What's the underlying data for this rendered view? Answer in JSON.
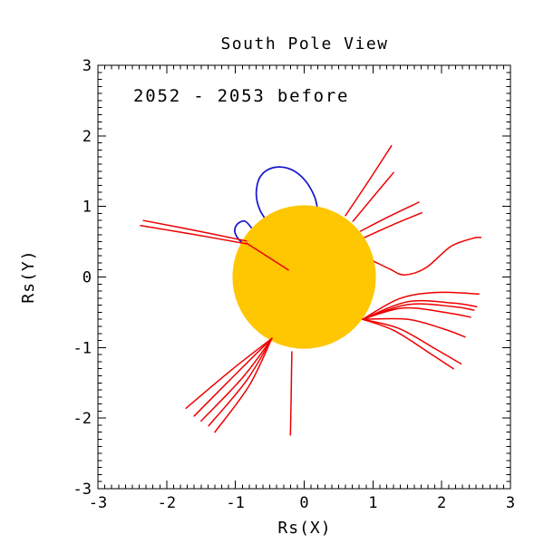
{
  "title": "South Pole View",
  "annotation": "2052 - 2053 before",
  "axes": {
    "x_label": "Rs(X)",
    "y_label": "Rs(Y)",
    "x_tick_values": [
      -3,
      -2,
      -1,
      0,
      1,
      2,
      3
    ],
    "x_tick_labels": [
      "-3",
      "-2",
      "-1",
      "0",
      "1",
      "2",
      "3"
    ],
    "y_tick_values": [
      -3,
      -2,
      -1,
      0,
      1,
      2,
      3
    ],
    "y_tick_labels": [
      "-3",
      "-2",
      "-1",
      "0",
      "1",
      "2",
      "3"
    ],
    "minor_tick_step": 0.1,
    "grid": false
  },
  "colors": {
    "background": "#FFFFFF",
    "axis": "#000000",
    "text": "#000000",
    "sun": "#FFC602",
    "open_field_line": "#EE0000",
    "closed_field_line": "#1414CC"
  },
  "chart_data": {
    "type": "line",
    "title": "South Pole View",
    "subtitle": "2052 - 2053 before",
    "xlabel": "Rs(X)",
    "ylabel": "Rs(Y)",
    "xlim": [
      -3,
      3
    ],
    "ylim": [
      -3,
      3
    ],
    "legend": "none",
    "sun": {
      "center": [
        0,
        0
      ],
      "radius_rs": 1.03
    },
    "open_field_lines": [
      [
        [
          0.6,
          0.87
        ],
        [
          0.93,
          1.35
        ],
        [
          1.27,
          1.86
        ]
      ],
      [
        [
          0.71,
          0.79
        ],
        [
          1.0,
          1.13
        ],
        [
          1.3,
          1.48
        ]
      ],
      [
        [
          0.82,
          0.65
        ],
        [
          1.24,
          0.86
        ],
        [
          1.67,
          1.06
        ]
      ],
      [
        [
          0.88,
          0.56
        ],
        [
          1.29,
          0.74
        ],
        [
          1.71,
          0.91
        ]
      ],
      [
        [
          1.02,
          0.22
        ],
        [
          1.25,
          0.11
        ],
        [
          1.46,
          0.03
        ],
        [
          1.77,
          0.13
        ],
        [
          2.13,
          0.43
        ],
        [
          2.46,
          0.55
        ],
        [
          2.57,
          0.56
        ]
      ],
      [
        [
          0.85,
          -0.6
        ],
        [
          1.38,
          -0.31
        ],
        [
          1.91,
          -0.22
        ],
        [
          2.54,
          -0.24
        ]
      ],
      [
        [
          0.85,
          -0.6
        ],
        [
          1.51,
          -0.35
        ],
        [
          2.17,
          -0.37
        ],
        [
          2.51,
          -0.42
        ]
      ],
      [
        [
          0.85,
          -0.6
        ],
        [
          1.51,
          -0.39
        ],
        [
          2.17,
          -0.42
        ],
        [
          2.47,
          -0.47
        ]
      ],
      [
        [
          0.85,
          -0.6
        ],
        [
          1.44,
          -0.44
        ],
        [
          2.1,
          -0.51
        ],
        [
          2.42,
          -0.57
        ]
      ],
      [
        [
          0.85,
          -0.6
        ],
        [
          1.51,
          -0.6
        ],
        [
          2.04,
          -0.74
        ],
        [
          2.34,
          -0.85
        ]
      ],
      [
        [
          0.85,
          -0.6
        ],
        [
          1.38,
          -0.73
        ],
        [
          1.91,
          -1.02
        ],
        [
          2.28,
          -1.23
        ]
      ],
      [
        [
          0.85,
          -0.6
        ],
        [
          1.31,
          -0.76
        ],
        [
          1.84,
          -1.09
        ],
        [
          2.17,
          -1.3
        ]
      ],
      [
        [
          -0.47,
          -0.87
        ],
        [
          -1.06,
          -1.32
        ],
        [
          -1.72,
          -1.86
        ]
      ],
      [
        [
          -0.47,
          -0.87
        ],
        [
          -1.0,
          -1.38
        ],
        [
          -1.6,
          -1.97
        ]
      ],
      [
        [
          -0.47,
          -0.87
        ],
        [
          -0.89,
          -1.42
        ],
        [
          -1.5,
          -2.04
        ]
      ],
      [
        [
          -0.47,
          -0.87
        ],
        [
          -0.84,
          -1.47
        ],
        [
          -1.39,
          -2.11
        ]
      ],
      [
        [
          -0.47,
          -0.87
        ],
        [
          -0.8,
          -1.54
        ],
        [
          -1.3,
          -2.2
        ]
      ],
      [
        [
          -0.18,
          -1.06
        ],
        [
          -0.19,
          -1.73
        ],
        [
          -0.2,
          -2.24
        ]
      ],
      [
        [
          -0.84,
          0.51
        ],
        [
          -1.59,
          0.66
        ],
        [
          -2.34,
          0.8
        ]
      ],
      [
        [
          -0.84,
          0.47
        ],
        [
          -1.59,
          0.6
        ],
        [
          -2.38,
          0.73
        ]
      ],
      [
        [
          -0.84,
          0.48
        ],
        [
          -0.23,
          0.1
        ]
      ]
    ],
    "closed_field_lines": [
      [
        [
          0.2,
          0.94
        ],
        [
          0.15,
          1.14
        ],
        [
          0.02,
          1.36
        ],
        [
          -0.16,
          1.51
        ],
        [
          -0.36,
          1.56
        ],
        [
          -0.53,
          1.52
        ],
        [
          -0.64,
          1.42
        ],
        [
          -0.69,
          1.27
        ],
        [
          -0.69,
          1.1
        ],
        [
          -0.64,
          0.94
        ],
        [
          -0.57,
          0.83
        ],
        [
          -0.53,
          0.78
        ]
      ],
      [
        [
          -0.77,
          0.7
        ],
        [
          -0.86,
          0.79
        ],
        [
          -0.96,
          0.76
        ],
        [
          -1.01,
          0.67
        ],
        [
          -0.98,
          0.57
        ],
        [
          -0.9,
          0.49
        ],
        [
          -0.81,
          0.48
        ]
      ]
    ]
  }
}
